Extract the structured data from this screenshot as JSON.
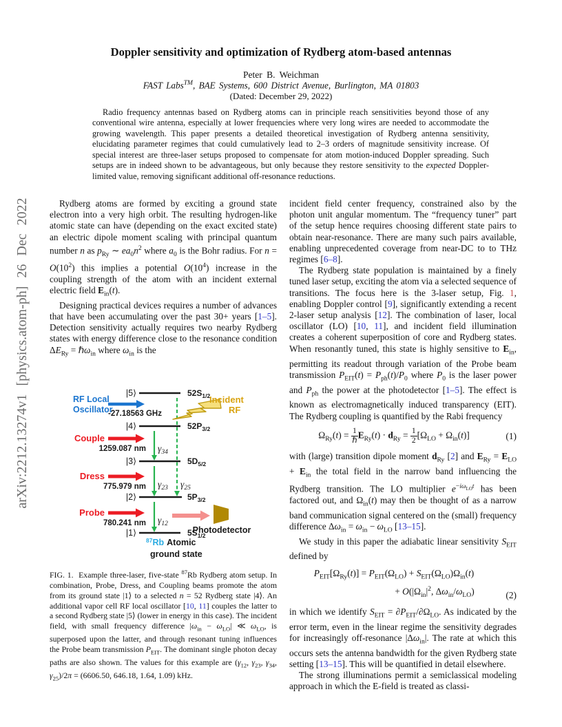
{
  "stamp": {
    "text": "arXiv:2212.13274v1 [physics.atom-ph] 26 Dec 2022"
  },
  "header": {
    "title": "Doppler sensitivity and optimization of Rydberg atom-based antennas",
    "author": "Peter B. Weichman",
    "affiliation_html": "FAST Labs<sup>TM</sup>, BAE Systems, 600 District Avenue, Burlington, MA 01803",
    "date": "(Dated: December 29, 2022)"
  },
  "abstract_html": "Radio frequency antennas based on Rydberg atoms can in principle reach sensitivities beyond those of any conventional wire antenna, especially at lower frequencies where very long wires are needed to accommodate the growing wavelength. This paper presents a detailed theoretical investigation of Rydberg antenna sensitivity, elucidating parameter regimes that could cumulatively lead to 2–3 orders of magnitude sensitivity increase. Of special interest are three-laser setups proposed to compensate for atom motion-induced Doppler spreading. Such setups are in indeed shown to be advantageous, but only because they restore sensitivity to the <i>expected</i> Doppler-limited value, removing significant additional off-resonance reductions.",
  "left_column": {
    "para1_html": "Rydberg atoms are formed by exciting a ground state electron into a very high orbit. The resulting hydrogen-like atomic state can have (depending on the exact excited state) an electric dipole moment scaling with principal quantum number <i>n</i> as <i>p</i><sub>Ry</sub> ∼ <i>ea</i><sub>0</sub><i>n</i><sup>2</sup> where <i>a</i><sub>0</sub> is the Bohr radius. For <i>n</i> = <i>O</i>(10<sup>2</sup>) this implies a potential <i>O</i>(10<sup>4</sup>) increase in the coupling strength of the atom with an incident external electric field <b>E</b><sub>in</sub>(<i>t</i>).",
    "para2_html": "Designing practical devices requires a number of advances that have been accumulating over the past 30+ years [<span class='cite'>1–5</span>]. Detection sensitivity actually requires two nearby Rydberg states with energy difference close to the resonance condition Δ<i>E</i><sub>Ry</sub> = ℏ<i>ω</i><sub>in</sub> where <i>ω</i><sub>in</sub> is the"
  },
  "figure": {
    "levels": [
      {
        "ket": "|5⟩",
        "state": "52S",
        "state_sub": "1/2"
      },
      {
        "ket": "|4⟩",
        "state": "52P",
        "state_sub": "3/2"
      },
      {
        "ket": "|3⟩",
        "state": "5D",
        "state_sub": "5/2"
      },
      {
        "ket": "|2⟩",
        "state": "5P",
        "state_sub": "3/2"
      },
      {
        "ket": "|1⟩",
        "state": "5S",
        "state_sub": "1/2"
      }
    ],
    "lo": {
      "line1": "RF Local",
      "line2": "Oscillator",
      "freq": "-27.18563 GHz"
    },
    "beams": [
      {
        "label": "Couple",
        "wavelength": "1259.087 nm"
      },
      {
        "label": "Dress",
        "wavelength": "775.979 nm"
      },
      {
        "label": "Probe",
        "wavelength": "780.241 nm"
      }
    ],
    "decays": [
      {
        "sym": "γ",
        "sub": "34"
      },
      {
        "sym": "γ",
        "sub": "23"
      },
      {
        "sym": "γ",
        "sub": "12"
      },
      {
        "sym": "γ",
        "sub": "25"
      }
    ],
    "incident": {
      "line1": "Incident",
      "line2": "RF"
    },
    "photodetector_label": "Photodetector",
    "ground": {
      "isotope": "87",
      "element": "Rb",
      "rest": "Atomic",
      "line2": "ground state"
    },
    "colors": {
      "lo_blue": "#1b75cf",
      "beam_red": "#ec1c24",
      "decay_green": "#27b34f",
      "incident_gold": "#d9a311",
      "bolt_fill": "#f6df7d",
      "bolt_stroke": "#c09c12",
      "photodetector_gold": "#b18904",
      "probe_out_pink": "#f4908e",
      "rb_cyan": "#2bace2",
      "cite_blue": "#3038c8",
      "ref_red": "#c0524e",
      "stamp_gray": "#6d6d6d"
    },
    "caption_html": "FIG. 1.&nbsp; Example three-laser, five-state <sup>87</sup>Rb Rydberg atom setup. In combination, Probe, Dress, and Coupling beams promote the atom from its ground state |1⟩ to a selected <i>n</i> = 52 Rydberg state |4⟩. An additional vapor cell RF local oscillator [<span class='cite'>10</span>, <span class='cite'>11</span>] couples the latter to a second Rydberg state |5⟩ (lower in energy in this case). The incident field, with small frequency difference |<i>ω</i><sub>in</sub> − <i>ω</i><sub>LO</sub>| ≪ <i>ω</i><sub>LO</sub>, is superposed upon the latter, and through resonant tuning influences the Probe beam transmission <i>P</i><sub>EIT</sub>. The dominant single photon decay paths are also shown. The values for this example are (<i>γ</i><sub>12</sub>, <i>γ</i><sub>23</sub>, <i>γ</i><sub>34</sub>, <i>γ</i><sub>25</sub>)/2<i>π</i> = (6606.50, 646.18, 1.64, 1.09) kHz."
  },
  "right_column": {
    "para1_html": "incident field center frequency, constrained also by the photon unit angular momentum. The “frequency tuner” part of the setup hence requires choosing different state pairs to obtain near-resonance. There are many such pairs available, enabling unprecedented coverage from near-DC to to THz regimes [<span class='cite'>6–8</span>].",
    "para2_html": "The Rydberg state population is maintained by a finely tuned laser setup, exciting the atom via a selected sequence of transitions. The focus here is the 3-laser setup, Fig. <span class='ref'>1</span>, enabling Doppler control [<span class='cite'>9</span>], significantly extending a recent 2-laser setup analysis [<span class='cite'>12</span>]. The combination of laser, local oscillator (LO) [<span class='cite'>10</span>, <span class='cite'>11</span>], and incident field illumination creates a coherent superposition of core and Rydberg states. When resonantly tuned, this state is highly sensitive to <b>E</b><sub>in</sub>, permitting its readout through variation of the Probe beam transmission <i>P</i><sub>EIT</sub>(<i>t</i>) = <i>P</i><sub>ph</sub>(<i>t</i>)/<i>P</i><sub>0</sub> where <i>P</i><sub>0</sub> is the laser power and <i>P</i><sub>ph</sub> the power at the photodetector [<span class='cite'>1–5</span>]. The effect is known as electromagnetically induced transparency (EIT). The Rydberg coupling is quantified by the Rabi frequency",
    "eq1_html": "Ω<sub>Ry</sub>(<i>t</i>) = <span class='frac'><span class='top'>1</span><span class='bot'>ℏ</span></span><b>E</b><sub>Ry</sub>(<i>t</i>) · <b>d</b><sub>Ry</sub> = <span class='frac'><span class='top'>1</span><span class='bot'>2</span></span>[Ω<sub>LO</sub> + Ω<sub>in</sub>(<i>t</i>)]",
    "eq1_num": "(1)",
    "para3_html": "with (large) transition dipole moment <b>d</b><sub>Ry</sub> [<span class='cite'>2</span>] and <b>E</b><sub>Ry</sub> = <b>E</b><sub>LO</sub> + <b>E</b><sub>in</sub> the total field in the narrow band influencing the Rydberg transition. The LO multiplier <i>e</i><sup>−<i>iω</i><sub>LO</sub><i>t</i></sup> has been factored out, and Ω<sub>in</sub>(<i>t</i>) may then be thought of as a narrow band communication signal centered on the (small) frequency difference Δ<i>ω</i><sub>in</sub> = <i>ω</i><sub>in</sub> − <i>ω</i><sub>LO</sub> [<span class='cite'>13–15</span>].",
    "para4_html": "We study in this paper the adiabatic linear sensitivity <i>S</i><sub>EIT</sub> defined by",
    "eq2_line1_html": "<i>P</i><sub>EIT</sub>[Ω<sub>Ry</sub>(<i>t</i>)] = <i>P</i><sub>EIT</sub>(Ω<sub>LO</sub>) + <i>S</i><sub>EIT</sub>(Ω<sub>LO</sub>)Ω<sub>in</sub>(<i>t</i>)",
    "eq2_line2_html": "+ <i>O</i>(|Ω<sub>in</sub>|<sup>2</sup>, Δ<i>ω</i><sub>in</sub>/<i>ω</i><sub>LO</sub>)",
    "eq2_num": "(2)",
    "para5_html": "in which we identify <i>S</i><sub>EIT</sub> = ∂<i>P</i><sub>EIT</sub>/∂Ω<sub>LO</sub>. As indicated by the error term, even in the linear regime the sensitivity degrades for increasingly off-resonance |Δ<i>ω</i><sub>in</sub>|. The rate at which this occurs sets the antenna bandwidth for the given Rydberg state setting [<span class='cite'>13–15</span>]. This will be quantified in detail elsewhere.",
    "para6_html": "The strong illuminations permit a semiclassical modeling approach in which the E-field is treated as classi-"
  }
}
